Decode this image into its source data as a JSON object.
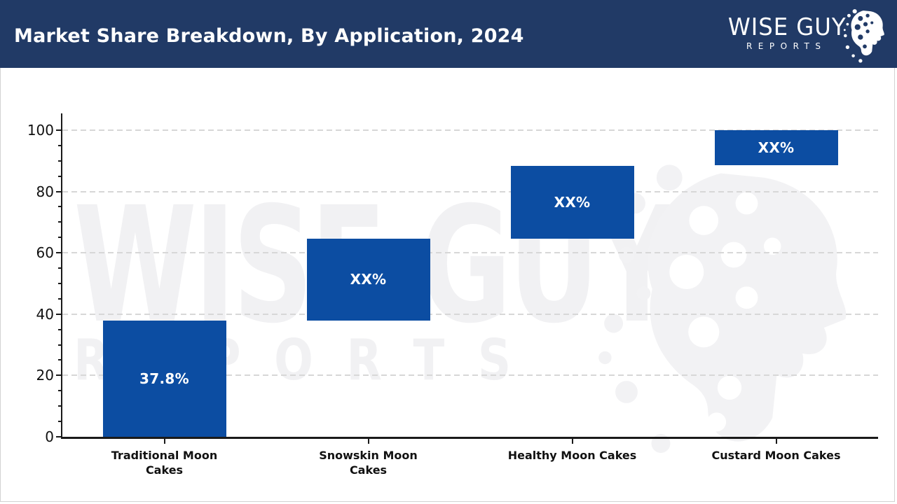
{
  "header": {
    "title": "Market Share Breakdown, By Application, 2024",
    "logo": {
      "name_line": "WISE GUY",
      "sub_line": "REPORTS"
    }
  },
  "watermark": {
    "line1": "WISE GUY",
    "line2": "REPORTS"
  },
  "chart_data": {
    "type": "bar",
    "subtype": "floating-waterfall",
    "title": "Market Share Breakdown, By Application, 2024",
    "categories": [
      "Traditional Moon\nCakes",
      "Snowskin Moon\nCakes",
      "Healthy Moon Cakes",
      "Custard Moon Cakes"
    ],
    "series": [
      {
        "name": "Traditional Moon Cakes",
        "start": 0,
        "end": 37.8,
        "label": "37.8%"
      },
      {
        "name": "Snowskin Moon Cakes",
        "start": 37.9,
        "end": 64.6,
        "label": "XX%"
      },
      {
        "name": "Healthy Moon Cakes",
        "start": 64.6,
        "end": 88.3,
        "label": "XX%"
      },
      {
        "name": "Custard Moon Cakes",
        "start": 88.5,
        "end": 100,
        "label": "XX%"
      }
    ],
    "xlabel": "",
    "ylabel": "",
    "ylim": [
      0,
      105
    ],
    "yticks": [
      0,
      20,
      40,
      60,
      80,
      100
    ],
    "minor_tick_step": 5,
    "grid": "dashed-horizontal",
    "legend": "none",
    "bar_color": "#0c4da2",
    "bar_label_color": "#ffffff"
  },
  "colors": {
    "header_bg": "#213a66",
    "bar": "#0c4da2",
    "gridline": "#d7d7d7",
    "axis": "#1a1a1a",
    "watermark": "#f1f1f3"
  }
}
